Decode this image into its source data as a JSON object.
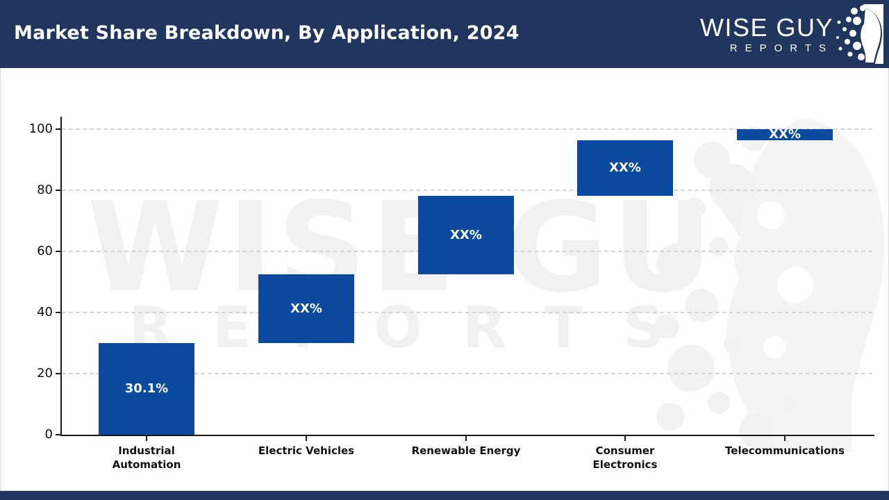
{
  "header": {
    "title": "Market Share Breakdown, By Application, 2024",
    "logo": {
      "line1": "WISE GUY",
      "line2": "REPORTS"
    }
  },
  "watermark": {
    "line1": "WISE GUY",
    "line2": "REPORTS"
  },
  "footer": {},
  "colors": {
    "header_bg": "#21365f",
    "footer_bg": "#21365f",
    "bar": "#0b4a9e",
    "gridline": "#d4d4d4",
    "axis": "#1a1a1a",
    "bar_label_text": "#ffffff",
    "watermark": "#f1f1f2"
  },
  "chart_data": {
    "type": "bar",
    "subtype": "waterfall",
    "title": "Market Share Breakdown, By Application, 2024",
    "categories": [
      "Industrial Automation",
      "Electric Vehicles",
      "Renewable Energy",
      "Consumer Electronics",
      "Telecommunications"
    ],
    "category_label_lines": [
      [
        "Industrial",
        "Automation"
      ],
      [
        "Electric Vehicles"
      ],
      [
        "Renewable Energy"
      ],
      [
        "Consumer",
        "Electronics"
      ],
      [
        "Telecommunications"
      ]
    ],
    "segments": [
      {
        "category": "Industrial Automation",
        "start": 0,
        "end": 30.1,
        "label": "30.1%"
      },
      {
        "category": "Electric Vehicles",
        "start": 30.1,
        "end": 52.6,
        "label": "XX%"
      },
      {
        "category": "Renewable Energy",
        "start": 52.6,
        "end": 78.2,
        "label": "XX%"
      },
      {
        "category": "Consumer Electronics",
        "start": 78.2,
        "end": 96.4,
        "label": "XX%"
      },
      {
        "category": "Telecommunications",
        "start": 96.4,
        "end": 100,
        "label": "XX%"
      }
    ],
    "yticks": [
      0,
      20,
      40,
      60,
      80,
      100
    ],
    "ylim": [
      0,
      104.5
    ],
    "xlabel": "",
    "ylabel": "",
    "grid": "horizontal-dashed",
    "legend": "none"
  }
}
